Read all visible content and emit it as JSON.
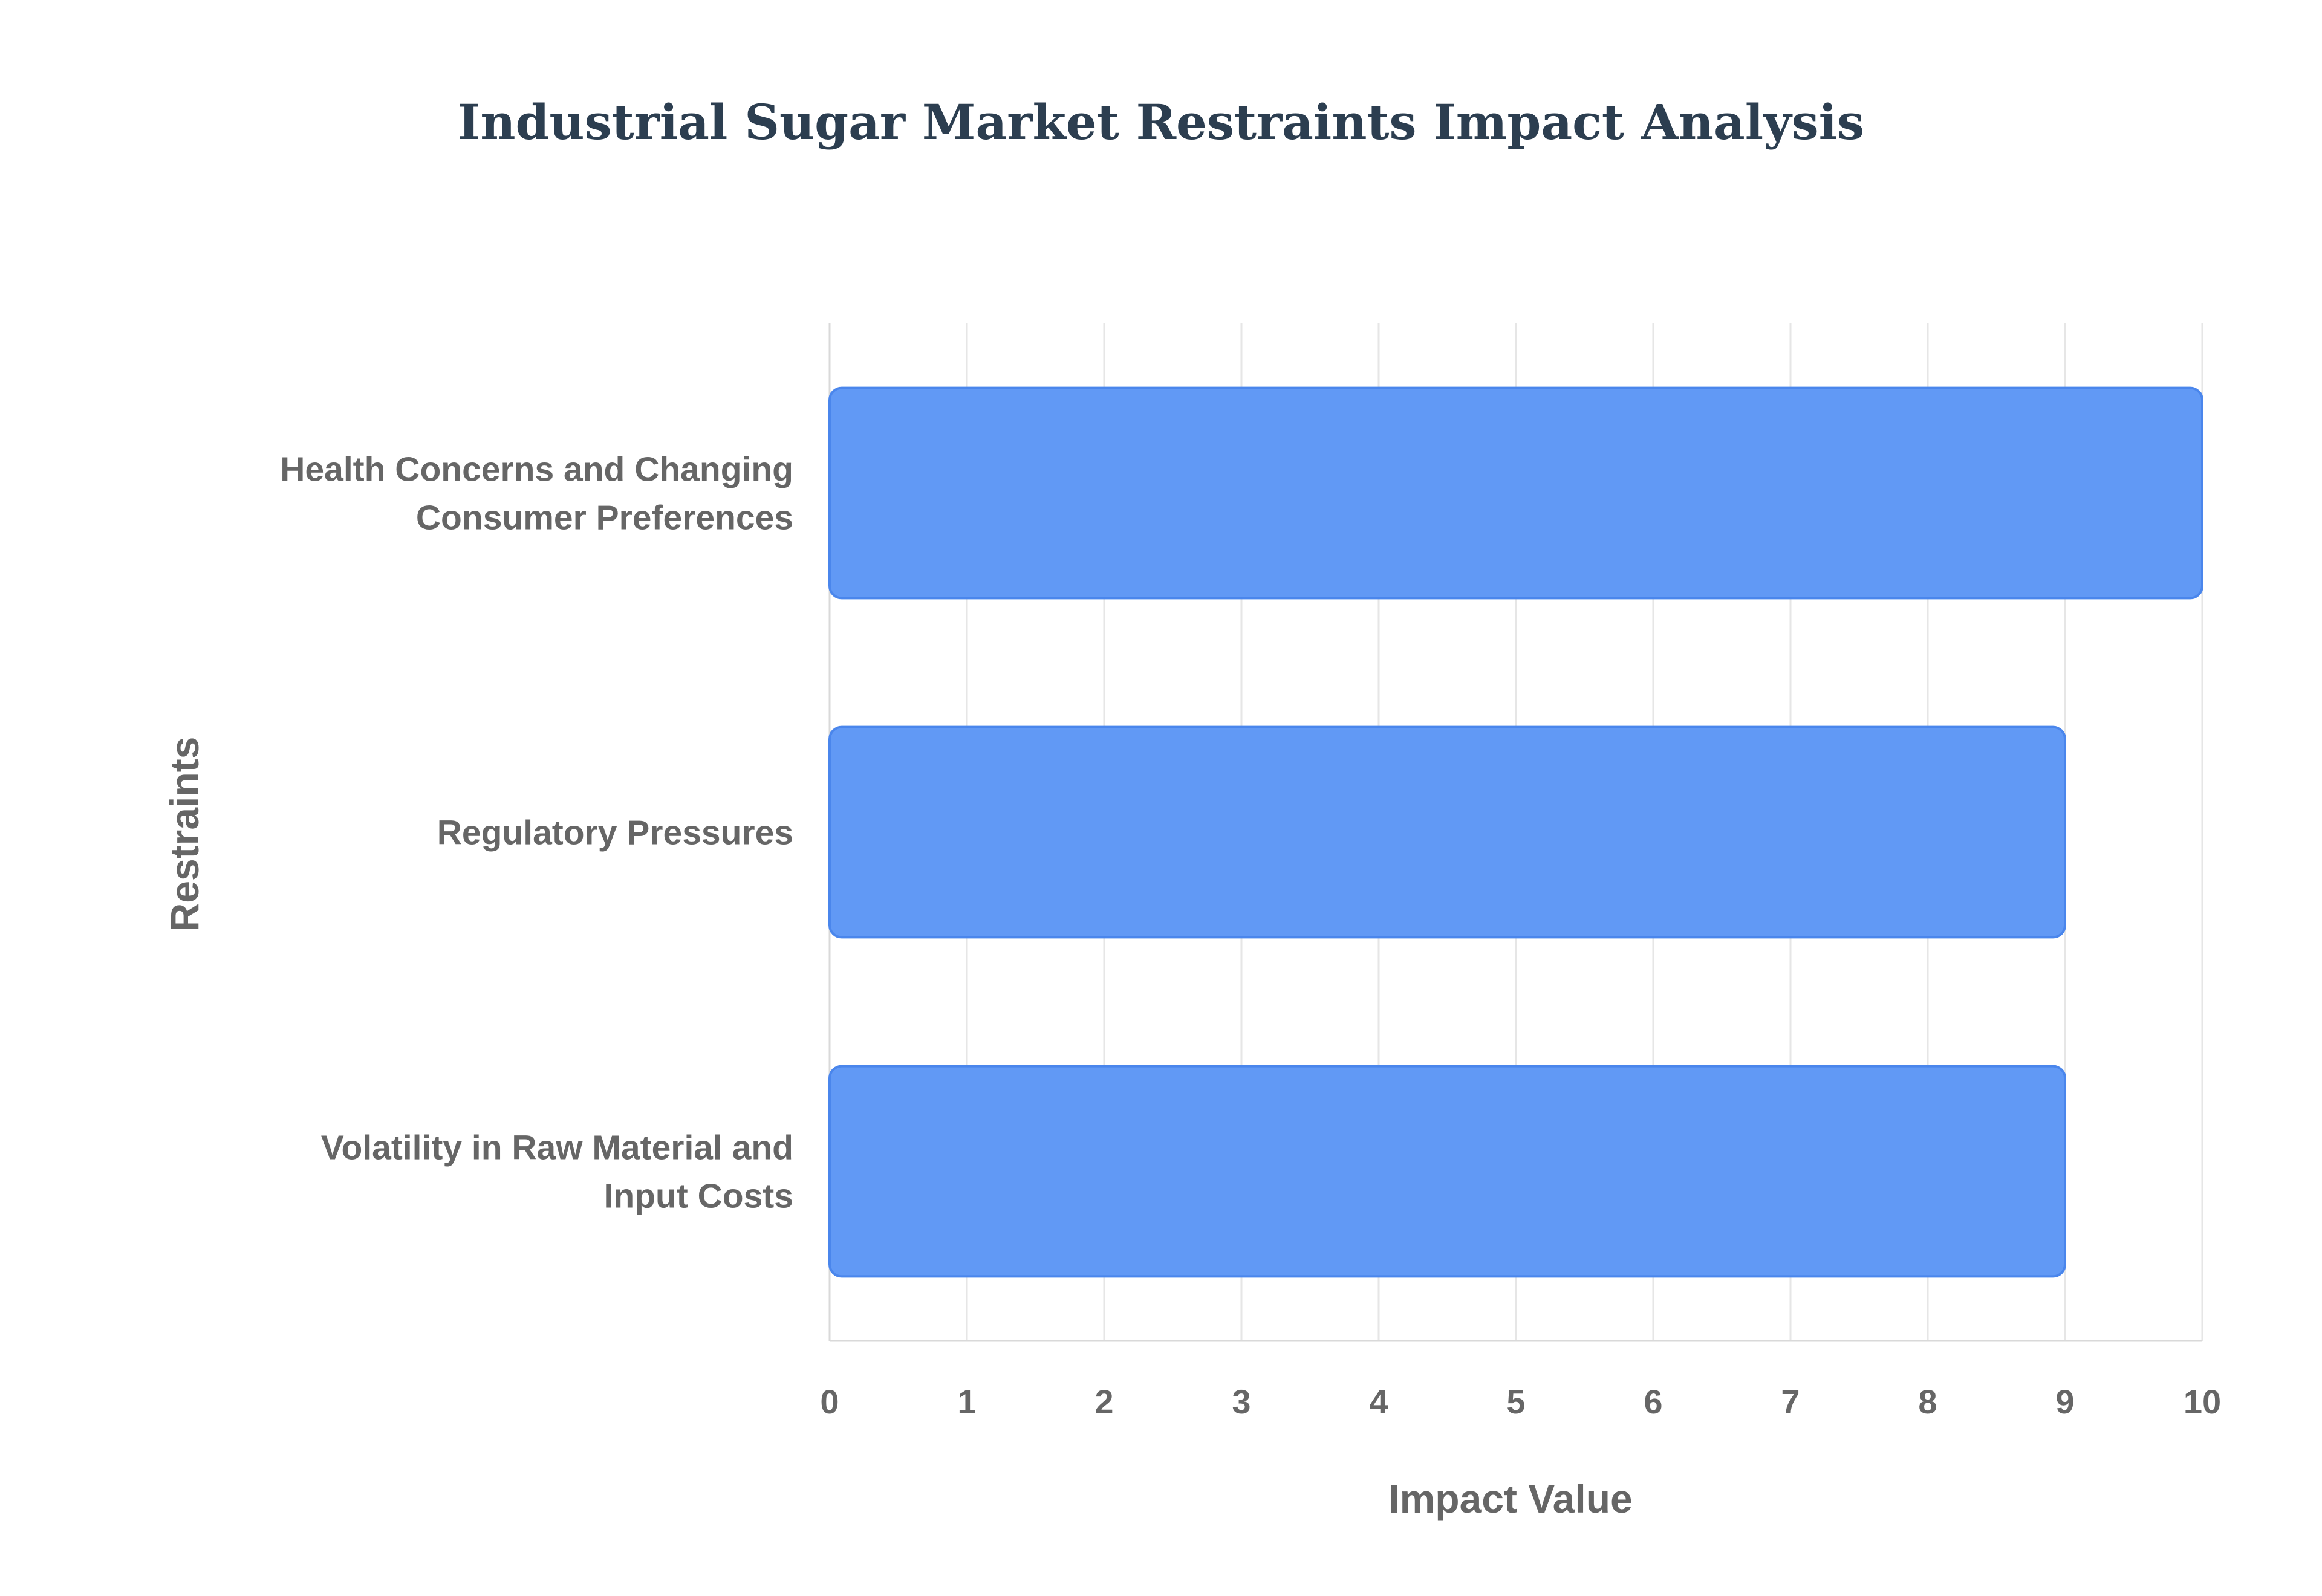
{
  "chart_data": {
    "type": "bar",
    "orientation": "horizontal",
    "title": "Industrial Sugar Market Restraints Impact Analysis",
    "xlabel": "Impact Value",
    "ylabel": "Restraints",
    "categories": [
      "Health Concerns and Changing Consumer Preferences",
      "Regulatory Pressures",
      "Volatility in Raw Material and Input Costs"
    ],
    "category_lines": [
      [
        "Health Concerns and Changing",
        "Consumer Preferences"
      ],
      [
        "Regulatory Pressures"
      ],
      [
        "Volatility in Raw Material and",
        "Input Costs"
      ]
    ],
    "values": [
      10,
      9,
      9
    ],
    "xlim": [
      0,
      10
    ],
    "xticks": [
      "0",
      "1",
      "2",
      "3",
      "4",
      "5",
      "6",
      "7",
      "8",
      "9",
      "10"
    ],
    "grid": true,
    "legend": "none",
    "colors": {
      "bar_fill": "#6199f5",
      "bar_stroke": "#4a86ec",
      "title": "#2c3e50",
      "text": "#666666",
      "grid": "#e6e6e6"
    }
  }
}
